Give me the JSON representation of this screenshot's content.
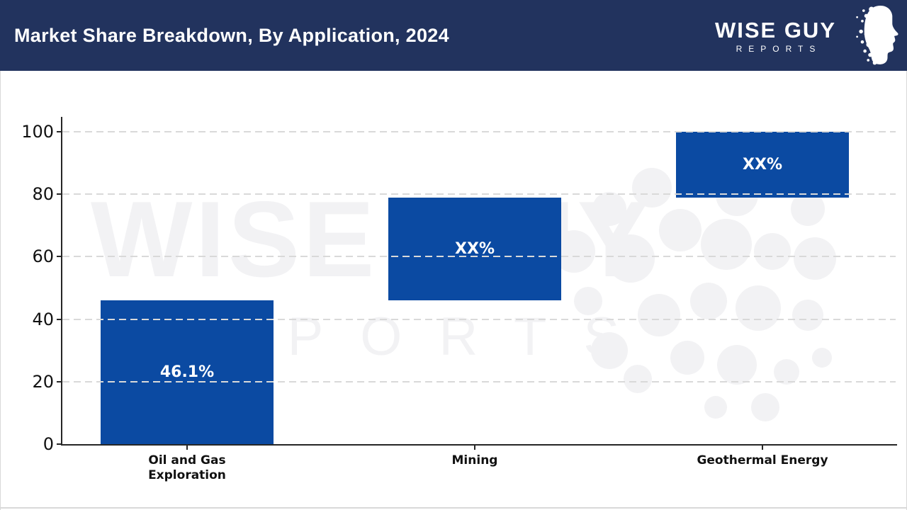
{
  "header": {
    "title": "Market Share Breakdown, By Application, 2024",
    "logo": {
      "wordmark": "WISE GUY",
      "subtitle": "REPORTS"
    }
  },
  "watermark": {
    "wordmark": "WISE GUY",
    "subtitle": "REPORTS"
  },
  "colors": {
    "header_bg": "#22335E",
    "bar_fill": "#0B4AA2",
    "bar_label": "#FFFFFF",
    "watermark": "#F2F2F4",
    "axis": "#262626",
    "grid": "#D9D9D9",
    "tick_label": "#111111"
  },
  "chart_data": {
    "type": "bar",
    "subtype": "waterfall",
    "title": "Market Share Breakdown, By Application, 2024",
    "categories": [
      "Oil and Gas Exploration",
      "Mining",
      "Geothermal Energy"
    ],
    "category_label_lines": [
      [
        "Oil and Gas",
        "Exploration"
      ],
      [
        "Mining"
      ],
      [
        "Geothermal Energy"
      ]
    ],
    "bars": [
      {
        "category": "Oil and Gas Exploration",
        "start": 0,
        "end": 46.1,
        "value_label": "46.1%"
      },
      {
        "category": "Mining",
        "start": 46.1,
        "end": 79,
        "value_label": "XX%"
      },
      {
        "category": "Geothermal Energy",
        "start": 79,
        "end": 100,
        "value_label": "XX%"
      }
    ],
    "xlabel": "",
    "ylabel": "",
    "ylim": [
      0,
      100
    ],
    "yticks": [
      0,
      20,
      40,
      60,
      80,
      100
    ],
    "grid": true,
    "grid_style": "dashed",
    "legend": false
  }
}
